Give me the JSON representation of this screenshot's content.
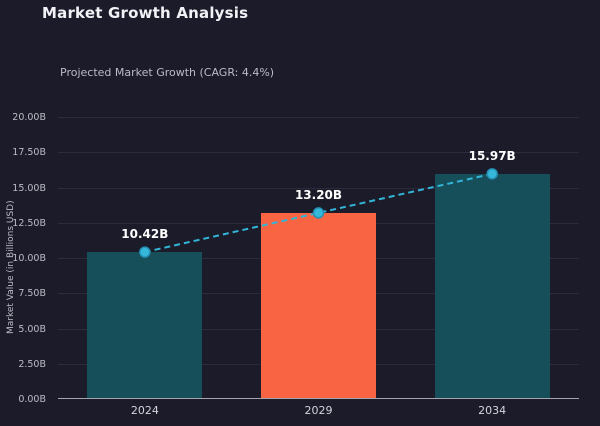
{
  "page": {
    "title": "Market Growth Analysis",
    "subtitle": "Projected Market Growth (CAGR: 4.4%)"
  },
  "chart_data": {
    "type": "bar",
    "title": "Projected Market Growth (CAGR: 4.4%)",
    "categories": [
      "2024",
      "2029",
      "2034"
    ],
    "values": [
      10.42,
      13.2,
      15.97
    ],
    "bar_labels": [
      "10.42B",
      "13.20B",
      "15.97B"
    ],
    "bar_colors": [
      "#164e59",
      "#f96543",
      "#164e59"
    ],
    "trend_line": {
      "style": "dashed",
      "color": "#33b5d8",
      "marker_color": "#35b8da",
      "marker_edge": "#2691b4"
    },
    "xlabel": "",
    "ylabel": "Market Value (in Billions USD)",
    "ylim": [
      0,
      20
    ],
    "yticks": [
      0,
      2.5,
      5,
      7.5,
      10,
      12.5,
      15,
      17.5,
      20
    ],
    "ytick_labels": [
      "0.00B",
      "2.50B",
      "5.00B",
      "7.50B",
      "10.00B",
      "12.50B",
      "15.00B",
      "17.50B",
      "20.00B"
    ],
    "grid": true,
    "legend": false
  },
  "colors": {
    "background": "#1b1b29",
    "grid": "#2b2b3d",
    "axis": "#bdbdc8",
    "text_primary": "#ffffff",
    "text_secondary": "#bcbcc7"
  }
}
